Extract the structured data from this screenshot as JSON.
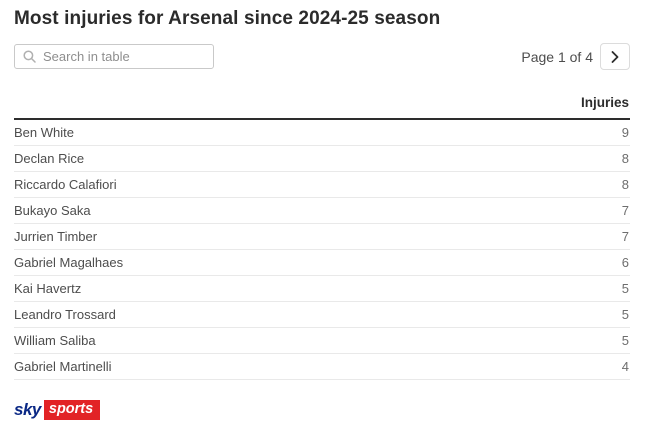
{
  "title": "Most injuries for Arsenal since 2024-25 season",
  "search": {
    "placeholder": "Search in table",
    "icon": "magnifier-icon"
  },
  "pagination": {
    "label": "Page 1 of 4",
    "next_icon": "chevron-right"
  },
  "table": {
    "value_header": "Injuries",
    "rows": [
      {
        "name": "Ben White",
        "value": "9"
      },
      {
        "name": "Declan Rice",
        "value": "8"
      },
      {
        "name": "Riccardo Calafiori",
        "value": "8"
      },
      {
        "name": "Bukayo Saka",
        "value": "7"
      },
      {
        "name": "Jurrien Timber",
        "value": "7"
      },
      {
        "name": "Gabriel Magalhaes",
        "value": "6"
      },
      {
        "name": "Kai Havertz",
        "value": "5"
      },
      {
        "name": "Leandro Trossard",
        "value": "5"
      },
      {
        "name": "William Saliba",
        "value": "5"
      },
      {
        "name": "Gabriel Martinelli",
        "value": "4"
      }
    ]
  },
  "footer": {
    "logo_sky": "sky",
    "logo_sports": "sports",
    "logo_blue": "#0a2885",
    "logo_red": "#e22326"
  },
  "colors": {
    "title_text": "#2b2b2b",
    "header_border": "#2d2d2d",
    "row_border": "#e9e9e9",
    "row_text": "#4d4d4d",
    "value_text": "#6e6e6e"
  },
  "chart_data": {
    "type": "table",
    "title": "Most injuries for Arsenal since 2024-25 season",
    "categories": [
      "Ben White",
      "Declan Rice",
      "Riccardo Calafiori",
      "Bukayo Saka",
      "Jurrien Timber",
      "Gabriel Magalhaes",
      "Kai Havertz",
      "Leandro Trossard",
      "William Saliba",
      "Gabriel Martinelli"
    ],
    "values": [
      9,
      8,
      8,
      7,
      7,
      6,
      5,
      5,
      5,
      4
    ],
    "ylabel": "Injuries"
  }
}
